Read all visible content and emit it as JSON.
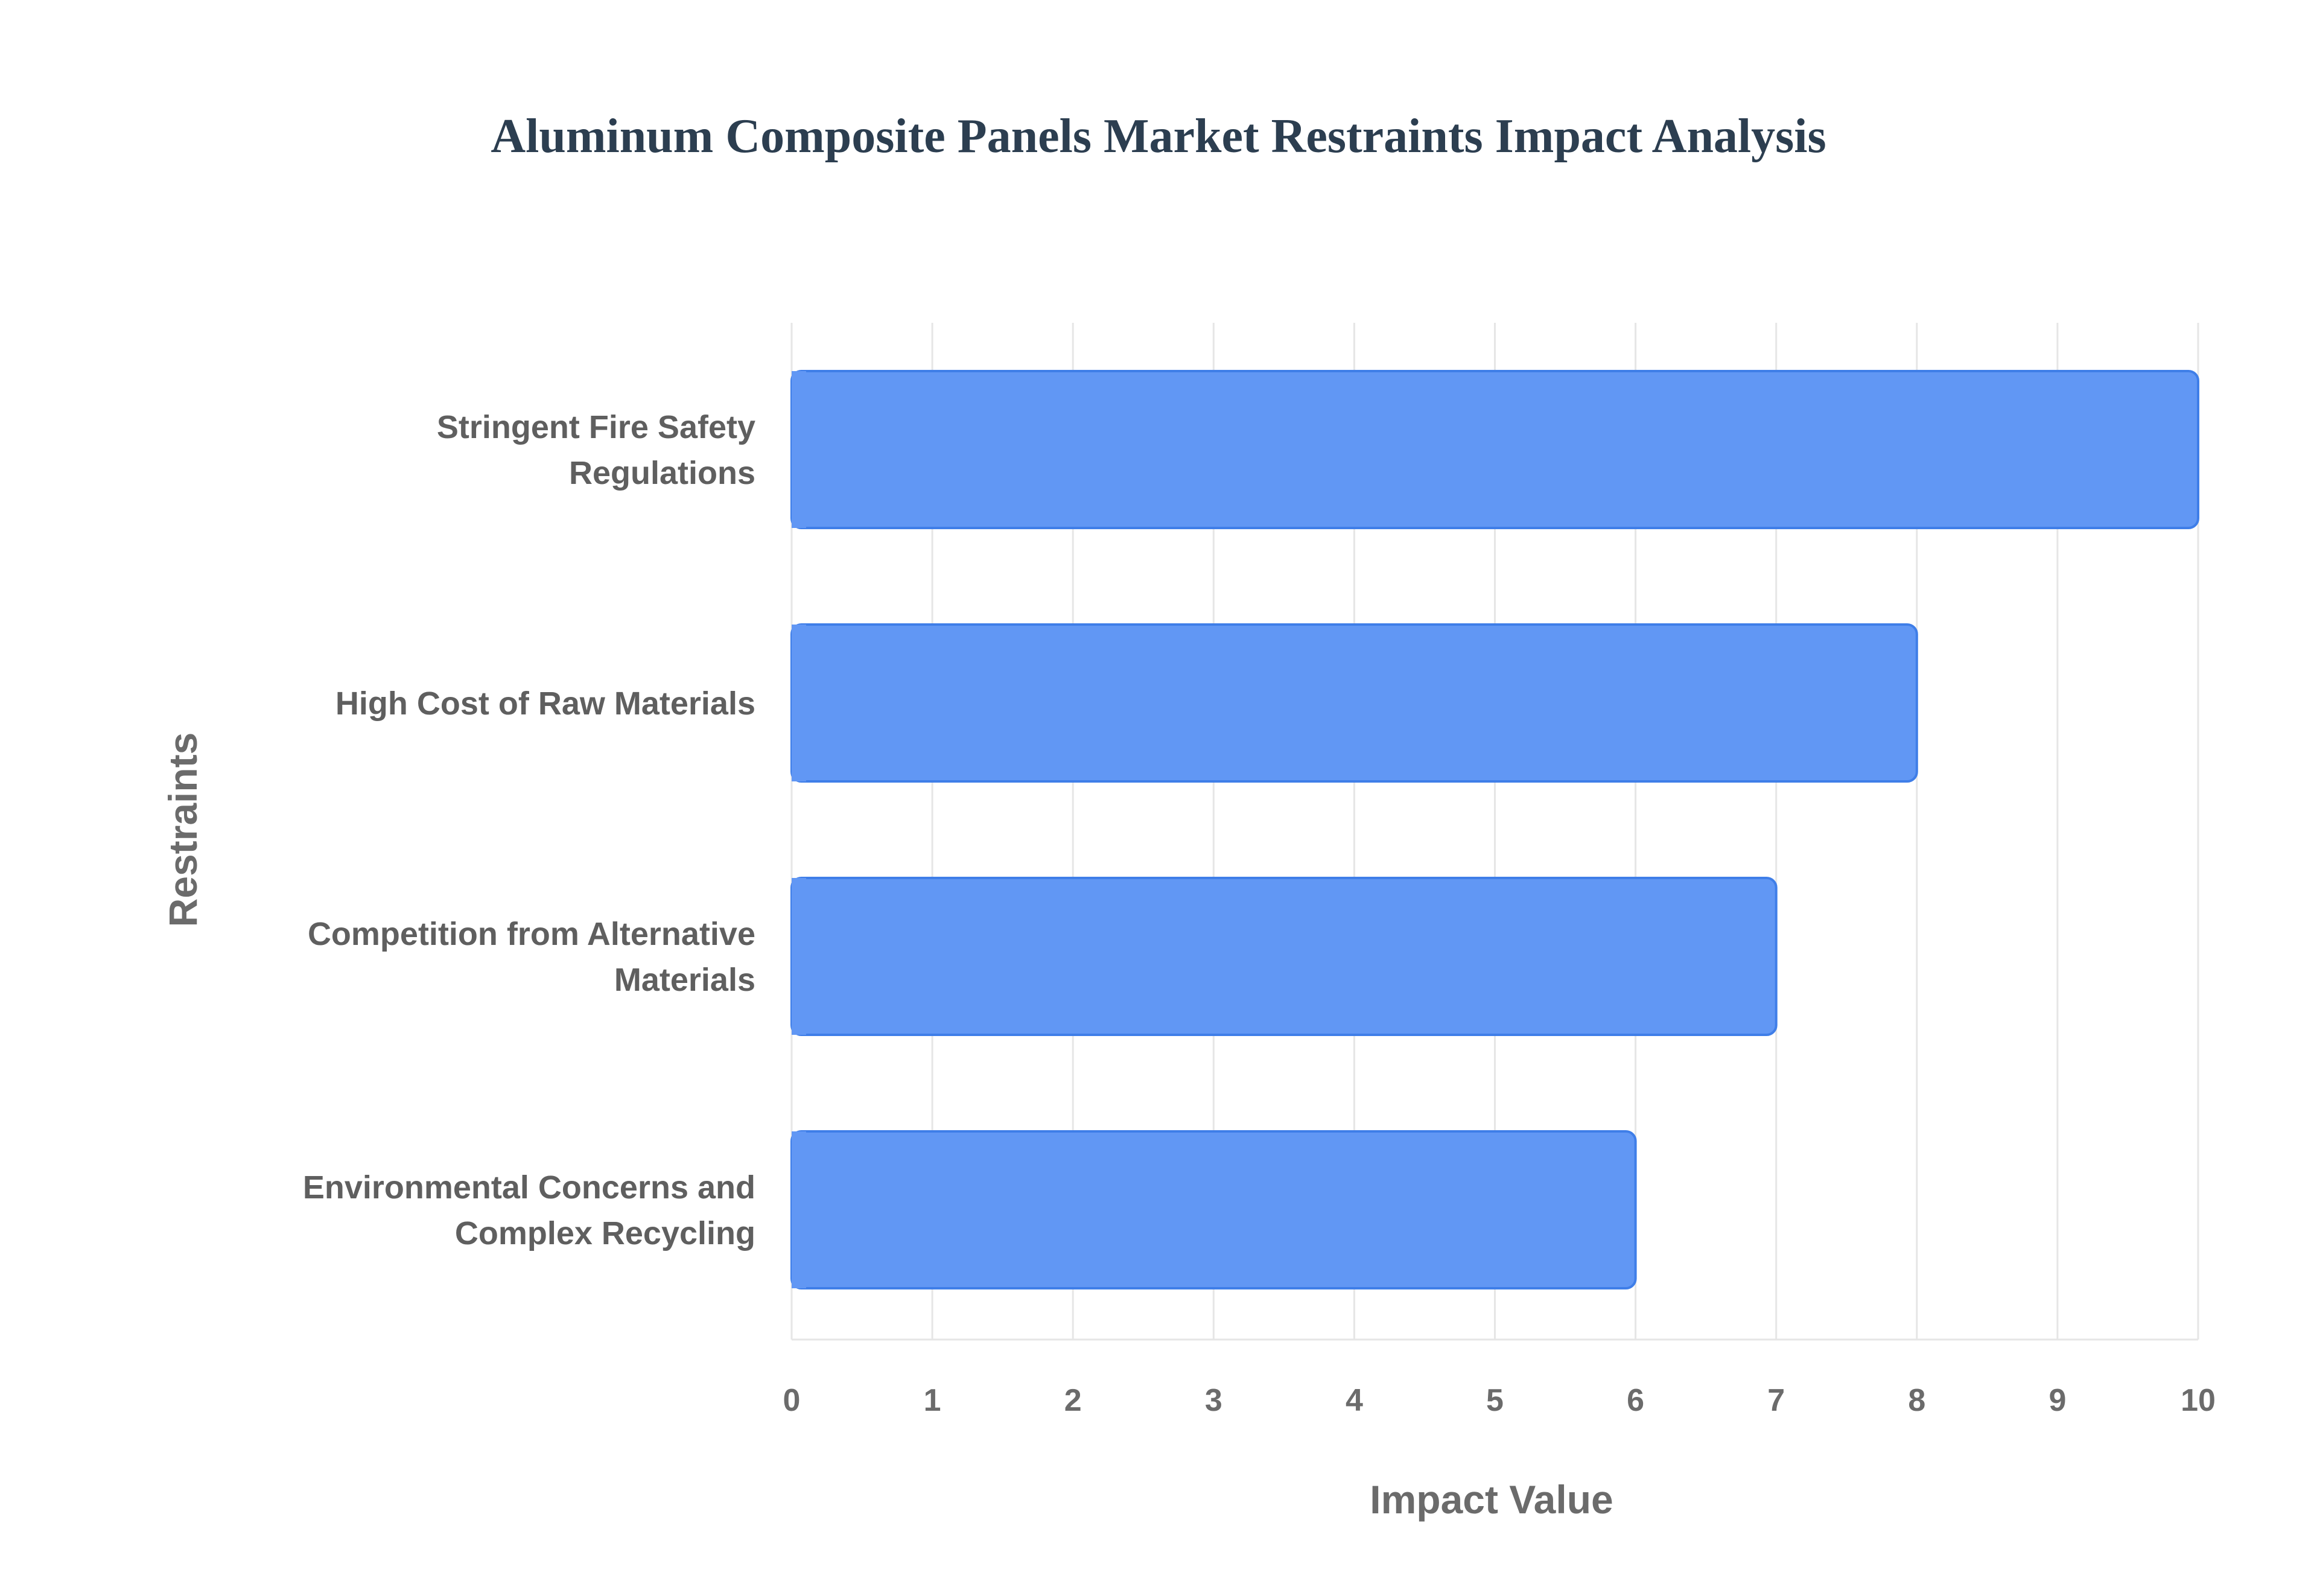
{
  "chart_data": {
    "type": "bar",
    "orientation": "horizontal",
    "title": "Aluminum Composite Panels Market Restraints Impact Analysis",
    "xlabel": "Impact Value",
    "ylabel": "Restraints",
    "categories": [
      [
        "Stringent Fire Safety",
        "Regulations"
      ],
      [
        "High Cost of Raw Materials"
      ],
      [
        "Competition from Alternative",
        "Materials"
      ],
      [
        "Environmental Concerns and",
        "Complex Recycling"
      ]
    ],
    "values": [
      10,
      8,
      7,
      6
    ],
    "xlim": [
      0,
      10
    ],
    "xticks": [
      "0",
      "1",
      "2",
      "3",
      "4",
      "5",
      "6",
      "7",
      "8",
      "9",
      "10"
    ],
    "grid": true,
    "legend": "none",
    "colors": {
      "bar_fill": "#6197f4",
      "bar_stroke": "#3f7ee8",
      "title": "#2c3e50",
      "axis_text": "#6b6b6b",
      "grid": "#e6e6e6"
    }
  }
}
